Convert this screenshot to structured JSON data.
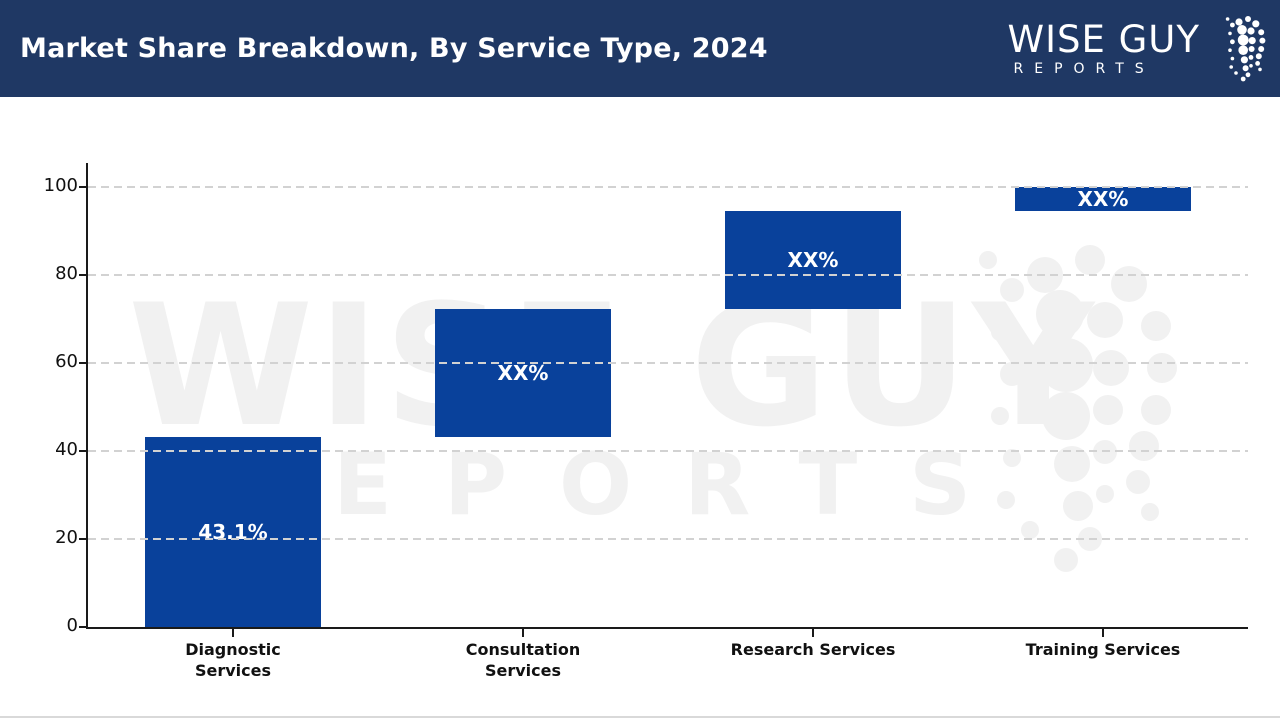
{
  "header": {
    "title": "Market Share Breakdown, By Service Type, 2024",
    "brand": {
      "name_top": "WISE GUY",
      "name_bottom": "REPORTS"
    }
  },
  "watermark": {
    "top": "WISE GUY",
    "bottom": "REPORTS"
  },
  "chart_data": {
    "type": "bar",
    "subtype": "waterfall-breakdown",
    "title": "Market Share Breakdown, By Service Type, 2024",
    "xlabel": "",
    "ylabel": "",
    "ylim": [
      0,
      100
    ],
    "yticks": [
      0,
      20,
      40,
      60,
      80,
      100
    ],
    "grid": "horizontal-dashed-overlaying-bars",
    "legend": "none",
    "bar_color": "#09419b",
    "bar_label_color": "#ffffff",
    "categories": [
      [
        "Diagnostic",
        "Services"
      ],
      [
        "Consultation",
        "Services"
      ],
      [
        "Research Services"
      ],
      [
        "Training Services"
      ]
    ],
    "segments": [
      {
        "category": "Diagnostic Services",
        "start": 0,
        "end": 43.1,
        "value": 43.1,
        "label": "43.1%"
      },
      {
        "category": "Consultation Services",
        "start": 43.1,
        "end": 72.2,
        "value": 29.1,
        "label": "XX%"
      },
      {
        "category": "Research Services",
        "start": 72.2,
        "end": 94.5,
        "value": 22.3,
        "label": "XX%"
      },
      {
        "category": "Training Services",
        "start": 94.5,
        "end": 100,
        "value": 5.5,
        "label": "XX%"
      }
    ]
  }
}
